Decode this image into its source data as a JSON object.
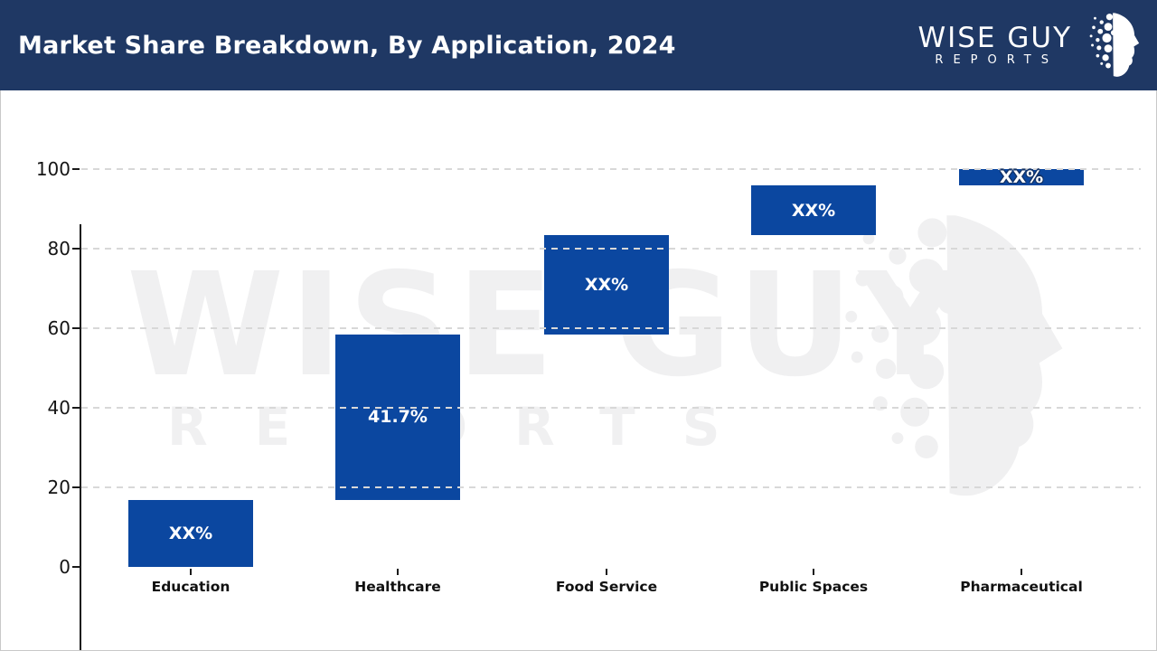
{
  "header": {
    "title": "Market Share Breakdown, By Application, 2024",
    "logo": {
      "line1": "WISE GUY",
      "line2": "REPORTS"
    }
  },
  "watermark": {
    "line1": "WISE GUY",
    "line2": "REPORTS"
  },
  "colors": {
    "header_bg": "#1f3864",
    "bar": "#0b47a0",
    "bar_label": "#ffffff",
    "axis": "#1a1a1a",
    "gridline": "#d8d8d8",
    "watermark": "#f0f0f1"
  },
  "chart_data": {
    "type": "bar",
    "subtype": "waterfall",
    "title": "Market Share Breakdown, By Application, 2024",
    "categories": [
      "Education",
      "Healthcare",
      "Food Service",
      "Public Spaces",
      "Pharmaceutical"
    ],
    "segments": [
      {
        "category": "Education",
        "start": 0,
        "end": 16.8,
        "value": 16.8,
        "label": "XX%"
      },
      {
        "category": "Healthcare",
        "start": 16.8,
        "end": 58.5,
        "value": 41.7,
        "label": "41.7%"
      },
      {
        "category": "Food Service",
        "start": 58.5,
        "end": 83.5,
        "value": 25.0,
        "label": "XX%"
      },
      {
        "category": "Public Spaces",
        "start": 83.5,
        "end": 95.8,
        "value": 12.3,
        "label": "XX%"
      },
      {
        "category": "Pharmaceutical",
        "start": 95.8,
        "end": 100,
        "value": 4.2,
        "label": "XX%"
      }
    ],
    "yticks": [
      0,
      20,
      40,
      60,
      80,
      100
    ],
    "ylim": [
      0,
      108
    ],
    "xlabel": "",
    "ylabel": "",
    "grid": "horizontal-dashed",
    "legend": "none"
  }
}
